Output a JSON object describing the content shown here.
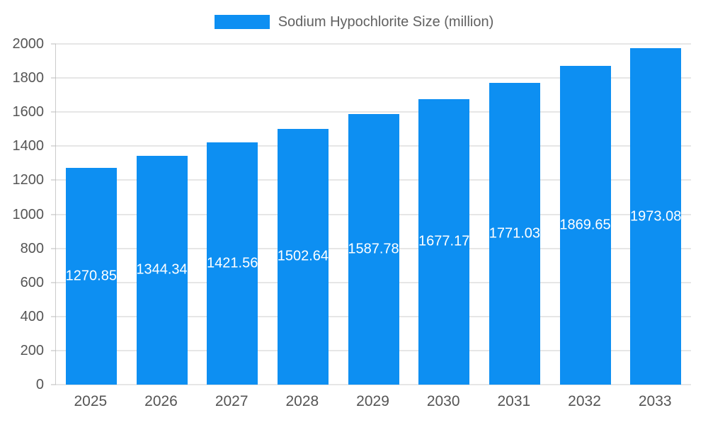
{
  "chart_data": {
    "type": "bar",
    "title": "",
    "legend": {
      "label": "Sodium Hypochlorite Size (million)",
      "position": "top"
    },
    "categories": [
      "2025",
      "2026",
      "2027",
      "2028",
      "2029",
      "2030",
      "2031",
      "2032",
      "2033"
    ],
    "series": [
      {
        "name": "Sodium Hypochlorite Size (million)",
        "values": [
          1270.85,
          1344.34,
          1421.56,
          1502.64,
          1587.78,
          1677.17,
          1771.03,
          1869.65,
          1973.08
        ]
      }
    ],
    "value_labels": [
      "1270.85",
      "1344.34",
      "1421.56",
      "1502.64",
      "1587.78",
      "1677.17",
      "1771.03",
      "1869.65",
      "1973.08"
    ],
    "xlabel": "",
    "ylabel": "",
    "ylim": [
      0,
      2000
    ],
    "yticks": [
      0,
      200,
      400,
      600,
      800,
      1000,
      1200,
      1400,
      1600,
      1800,
      2000
    ],
    "grid": true,
    "legend_position": "top-center",
    "colors": {
      "bar": "#0D8FF2",
      "grid": "#cccccc",
      "tick": "#bbbbbb",
      "axis_text": "#555555",
      "legend_text": "#616161",
      "value_label": "#ffffff",
      "background": "#ffffff"
    }
  }
}
